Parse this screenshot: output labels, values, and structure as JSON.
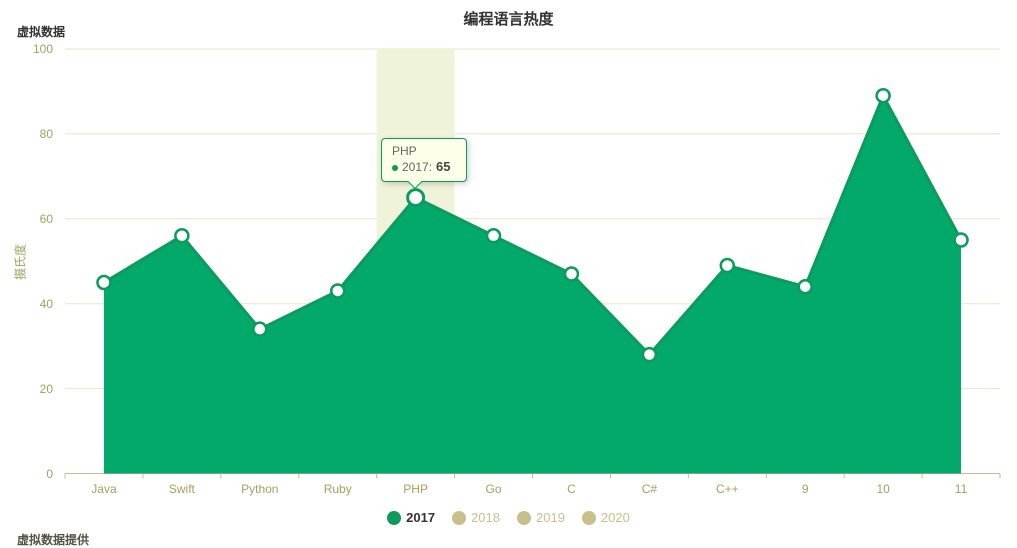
{
  "title": "编程语言热度",
  "subtitle": "虚拟数据",
  "y_axis": {
    "name": "摄氏度"
  },
  "tooltip": {
    "category": "PHP",
    "series_label": "2017:",
    "value": "65"
  },
  "footer_partial_text": "虚拟数据提供",
  "legend": {
    "items": [
      {
        "label": "2017",
        "active": true
      },
      {
        "label": "2018",
        "active": false
      },
      {
        "label": "2019",
        "active": false
      },
      {
        "label": "2020",
        "active": false
      }
    ]
  },
  "colors": {
    "accent_green": "#03a96a",
    "line_green": "#0b9b5e",
    "khaki_text": "#a5a05e",
    "grid_line": "#e8e5c3",
    "axis_line": "#c4bd8a",
    "band_bg": "#eef3d9",
    "legend_inactive": "#c8c08c",
    "tooltip_bg": "#fdffe8",
    "dark_text": "#333333"
  },
  "chart_data": {
    "type": "area",
    "title": "编程语言热度",
    "xlabel": "",
    "ylabel": "摄氏度",
    "ylim": [
      0,
      100
    ],
    "yticks": [
      0,
      20,
      40,
      60,
      80,
      100
    ],
    "grid": true,
    "legend_position": "bottom",
    "categories": [
      "Java",
      "Swift",
      "Python",
      "Ruby",
      "PHP",
      "Go",
      "C",
      "C#",
      "C++",
      "9",
      "10",
      "11"
    ],
    "series": [
      {
        "name": "2017",
        "values": [
          45,
          56,
          34,
          43,
          65,
          56,
          47,
          28,
          49,
          44,
          89,
          55
        ]
      }
    ],
    "inactive_series": [
      "2018",
      "2019",
      "2020"
    ],
    "highlighted_category": "PHP",
    "highlighted_value": 65
  }
}
